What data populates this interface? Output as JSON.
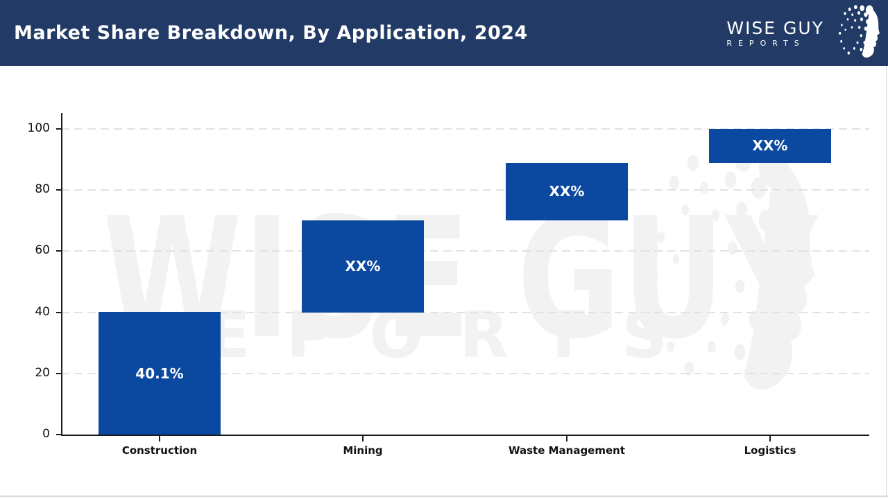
{
  "header": {
    "title": "Market Share Breakdown, By Application, 2024",
    "logo": {
      "line1": "WISE GUY",
      "line2": "REPORTS"
    }
  },
  "watermark": {
    "line1": "WISE GUY",
    "line2": "REPORTS"
  },
  "chart_data": {
    "type": "bar",
    "subtype": "waterfall",
    "title": "Market Share Breakdown, By Application, 2024",
    "categories": [
      "Construction",
      "Mining",
      "Waste Management",
      "Logistics"
    ],
    "segments": [
      {
        "category": "Construction",
        "start": 0,
        "end": 40.1,
        "label": "40.1%"
      },
      {
        "category": "Mining",
        "start": 40,
        "end": 70,
        "label": "XX%"
      },
      {
        "category": "Waste Management",
        "start": 70,
        "end": 89,
        "label": "XX%"
      },
      {
        "category": "Logistics",
        "start": 89,
        "end": 100,
        "label": "XX%"
      }
    ],
    "yticks": [
      0,
      20,
      40,
      60,
      80,
      100
    ],
    "ylim": [
      0,
      105
    ],
    "xlabel": "",
    "ylabel": "",
    "grid": "horizontal-dashed",
    "legend": "none",
    "bar_color": "#0b48a0",
    "bar_label_color": "#ffffff"
  },
  "colors": {
    "header_bg": "#213a66",
    "bar": "#0b48a0",
    "axis": "#1a1a1a",
    "grid": "#e2e2e2",
    "watermark": "#f2f2f2",
    "frame_line": "#d9d9d9",
    "title_text": "#ffffff"
  }
}
